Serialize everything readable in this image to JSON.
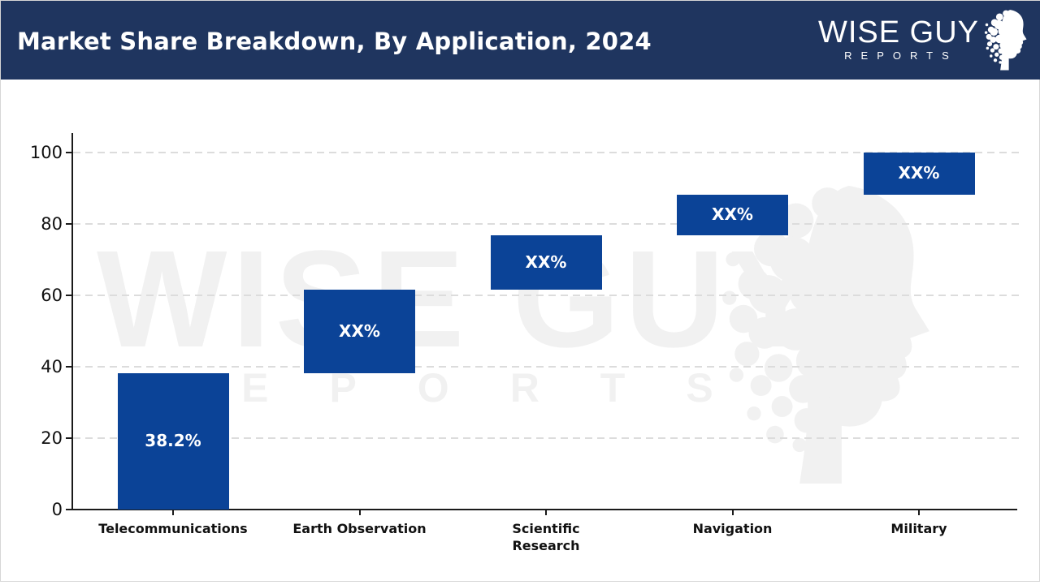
{
  "header": {
    "title": "Market Share Breakdown, By Application, 2024",
    "logo": {
      "line1": "WISE GUY",
      "line2": "REPORTS"
    }
  },
  "watermark": {
    "line1": "WISE GUY",
    "line2": "REPORTS"
  },
  "chart_data": {
    "type": "bar",
    "subtype": "waterfall",
    "title": "Market Share Breakdown, By Application, 2024",
    "categories": [
      "Telecommunications",
      "Earth Observation",
      "Scientific Research",
      "Navigation",
      "Military"
    ],
    "category_display": [
      "Telecommunications",
      "Earth Observation",
      "Scientific\nResearch",
      "Navigation",
      "Military"
    ],
    "segments": [
      {
        "category": "Telecommunications",
        "start": 0,
        "end": 38.2,
        "value": 38.2,
        "label": "38.2%"
      },
      {
        "category": "Earth Observation",
        "start": 38.2,
        "end": 61.5,
        "value": 23.3,
        "label": "XX%"
      },
      {
        "category": "Scientific Research",
        "start": 61.5,
        "end": 76.8,
        "value": 15.3,
        "label": "XX%"
      },
      {
        "category": "Navigation",
        "start": 76.8,
        "end": 88.2,
        "value": 11.4,
        "label": "XX%"
      },
      {
        "category": "Military",
        "start": 88.2,
        "end": 100,
        "value": 11.8,
        "label": "XX%"
      }
    ],
    "yticks": [
      0,
      20,
      40,
      60,
      80,
      100
    ],
    "ylim": [
      0,
      105
    ],
    "xlabel": "",
    "ylabel": "",
    "grid": true,
    "legend": "none",
    "bar_color": "#0b4397",
    "bar_label_color": "#ffffff",
    "gridline_color": "#dcdcdc",
    "header_color": "#1f355f"
  }
}
